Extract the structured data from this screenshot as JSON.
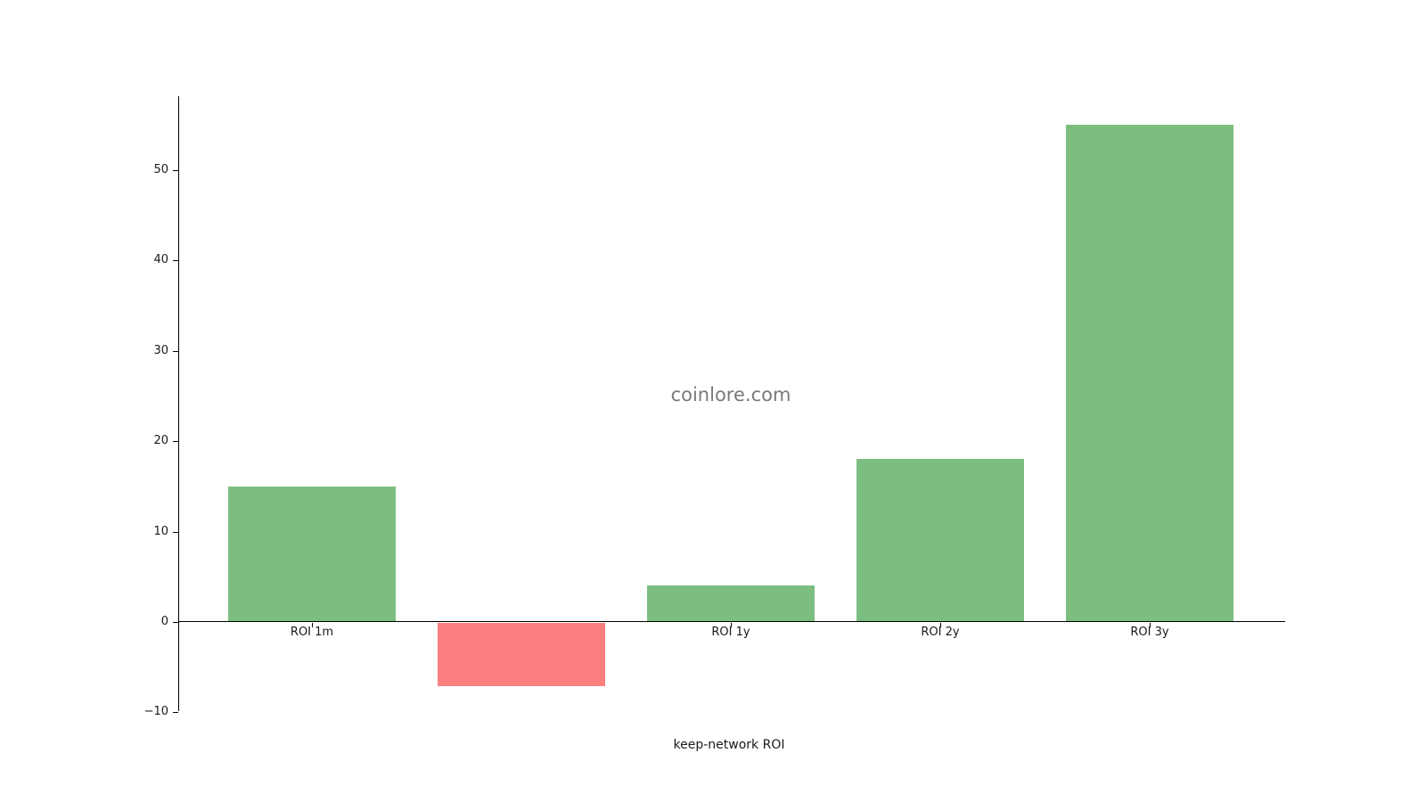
{
  "page": {
    "background": "#ffffff"
  },
  "chart_data": {
    "type": "bar",
    "title": "",
    "xlabel": "keep-network ROI",
    "ylabel": "",
    "watermark": "coinlore.com",
    "categories": [
      "ROI 1m",
      "",
      "ROI 1y",
      "ROI 2y",
      "ROI 3y"
    ],
    "values": [
      15,
      -7,
      4,
      18,
      55
    ],
    "bar_colors": [
      "#7CBE80",
      "#FC8080",
      "#7CBE80",
      "#7CBE80",
      "#7CBE80"
    ],
    "positive_color": "#7CBE80",
    "negative_color": "#FC8080",
    "axis_color": "#000000",
    "text_color": "#1a1a1a",
    "watermark_color": "#7a7a7a",
    "y_ticks": {
      "values": [
        50,
        40,
        30,
        20,
        10,
        0,
        -10
      ],
      "labels": [
        "50",
        "40",
        "30",
        "20",
        "10",
        "0",
        "−10"
      ]
    },
    "ylim": [
      -10.2,
      58.2
    ],
    "grid": false,
    "legend": "none"
  }
}
